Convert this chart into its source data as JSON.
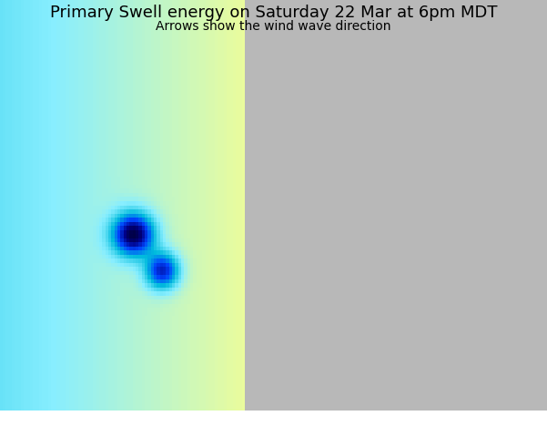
{
  "title": "Primary Swell energy on Saturday 22 Mar at 6pm MDT",
  "subtitle": "Arrows show the wind wave direction",
  "title_fontsize": 13,
  "subtitle_fontsize": 10,
  "fig_width": 6.01,
  "fig_height": 4.9,
  "dpi": 100,
  "map_extent": [
    -135,
    -88,
    24,
    52
  ],
  "ocean_color": "#00ccdd",
  "land_color": "#aaaaaa",
  "background": "#ffffff",
  "swell_high_color": "#000066",
  "swell_medium_color": "#0000ff",
  "swell_low_color": "#00aaff",
  "swell_min_color": "#aaffff"
}
